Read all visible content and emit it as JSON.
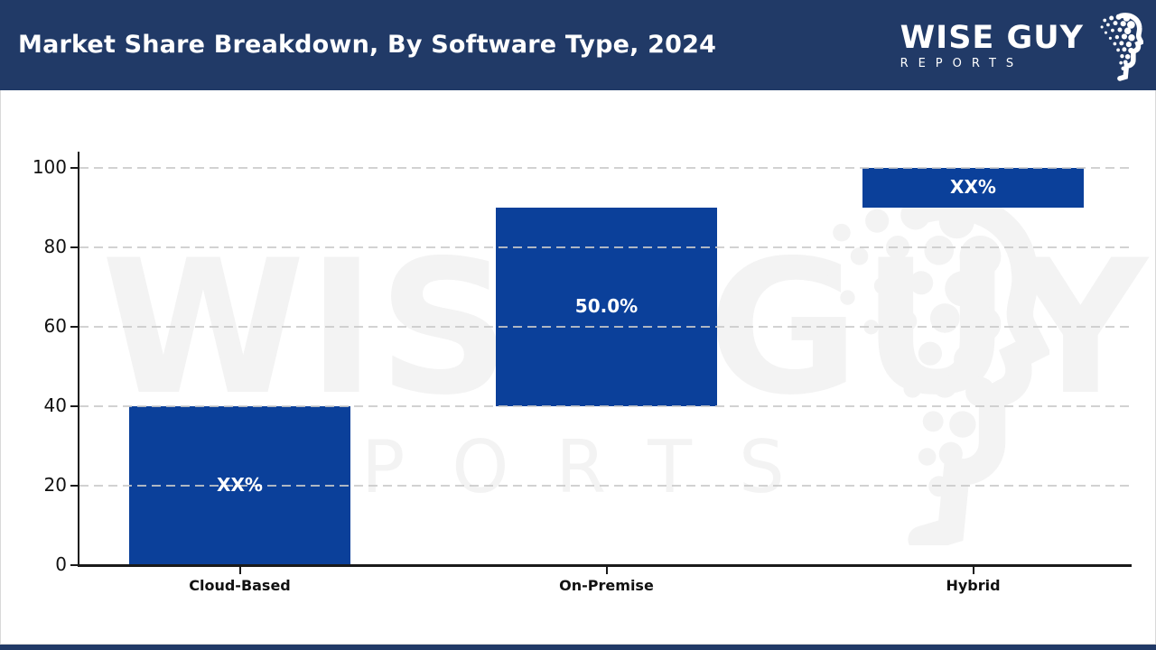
{
  "header": {
    "title": "Market Share Breakdown, By Software Type, 2024",
    "logo_line1": "WISE GUY",
    "logo_line2": "REPORTS"
  },
  "watermark": {
    "line1": "WISE GUY",
    "line2": "REPORTS"
  },
  "chart_data": {
    "type": "bar",
    "variant": "floating-segment-waterfall",
    "title": "Market Share Breakdown, By Software Type, 2024",
    "categories": [
      "Cloud-Based",
      "On-Premise",
      "Hybrid"
    ],
    "bars": [
      {
        "category": "Cloud-Based",
        "start": 0,
        "end": 40,
        "label": "XX%"
      },
      {
        "category": "On-Premise",
        "start": 40,
        "end": 90,
        "label": "50.0%"
      },
      {
        "category": "Hybrid",
        "start": 90,
        "end": 100,
        "label": "XX%"
      }
    ],
    "yticks": [
      0,
      20,
      40,
      60,
      80,
      100
    ],
    "ylim": [
      0,
      104
    ],
    "xlabel": "",
    "ylabel": "",
    "grid": "horizontal-dashed",
    "legend": false,
    "bar_color": "#0B409A",
    "bar_label_color": "#ffffff"
  },
  "colors": {
    "header_bg": "#213A67",
    "footer_bg": "#213A67",
    "axis": "#1a1a1a",
    "grid": "#cacaca",
    "watermark": "#f3f3f3",
    "frame_border": "#d9d9d9",
    "background": "#ffffff"
  }
}
